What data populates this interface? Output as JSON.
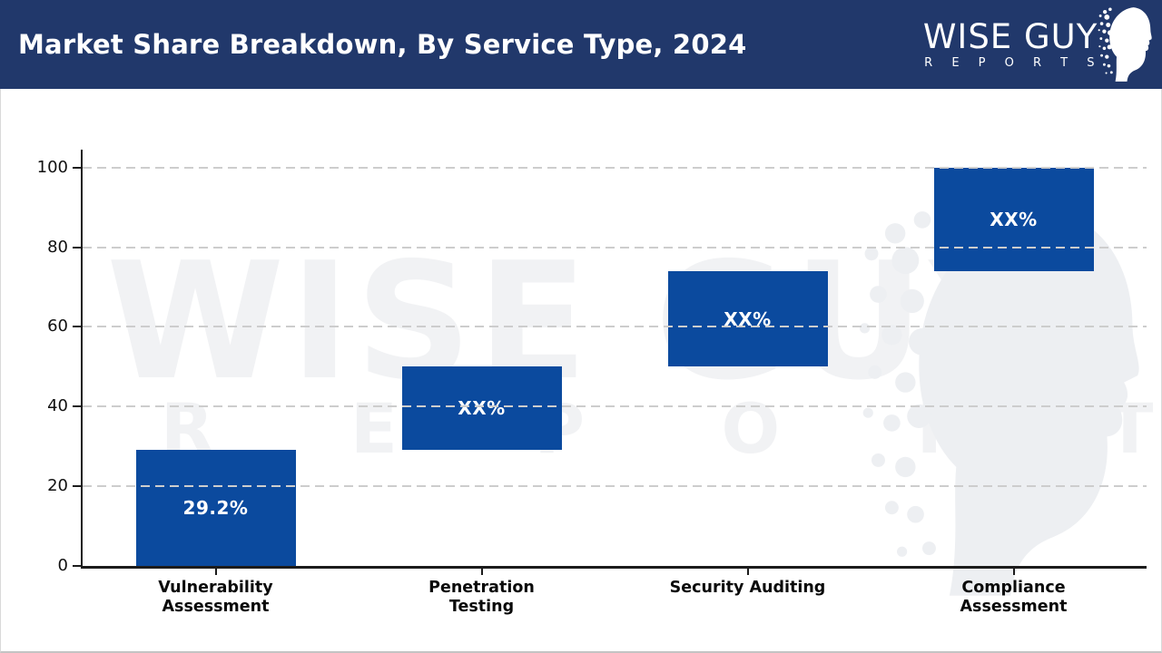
{
  "header": {
    "title": "Market Share Breakdown, By Service Type, 2024",
    "background_color": "#21386B",
    "logo": {
      "brand_line1": "WISE GUY",
      "brand_line2": "R E P O R T S"
    }
  },
  "watermark": {
    "line1": "WISE GUY",
    "line2": "R E P O R T S"
  },
  "chart_data": {
    "type": "bar",
    "subtype": "waterfall",
    "title": "Market Share Breakdown, By Service Type, 2024",
    "categories": [
      "Vulnerability Assessment",
      "Penetration Testing",
      "Security Auditing",
      "Compliance Assessment"
    ],
    "category_lines": [
      [
        "Vulnerability",
        "Assessment"
      ],
      [
        "Penetration",
        "Testing"
      ],
      [
        "Security Auditing",
        ""
      ],
      [
        "Compliance",
        "Assessment"
      ]
    ],
    "bars": [
      {
        "category": "Vulnerability Assessment",
        "start": 0,
        "end": 29.2,
        "label": "29.2%"
      },
      {
        "category": "Penetration Testing",
        "start": 29.2,
        "end": 50,
        "label": "XX%"
      },
      {
        "category": "Security Auditing",
        "start": 50,
        "end": 74,
        "label": "XX%"
      },
      {
        "category": "Compliance Assessment",
        "start": 74,
        "end": 100,
        "label": "XX%"
      }
    ],
    "yticks": [
      0,
      20,
      40,
      60,
      80,
      100
    ],
    "ylim": [
      0,
      104.5
    ],
    "xlabel": "",
    "ylabel": "",
    "bar_color": "#0B4A9E",
    "bar_label_color": "#ffffff",
    "grid": {
      "show": true,
      "axis": "y",
      "style": "dashed",
      "color": "#cdcdcd",
      "drawn_over_bars": true
    },
    "legend_position": "none"
  }
}
